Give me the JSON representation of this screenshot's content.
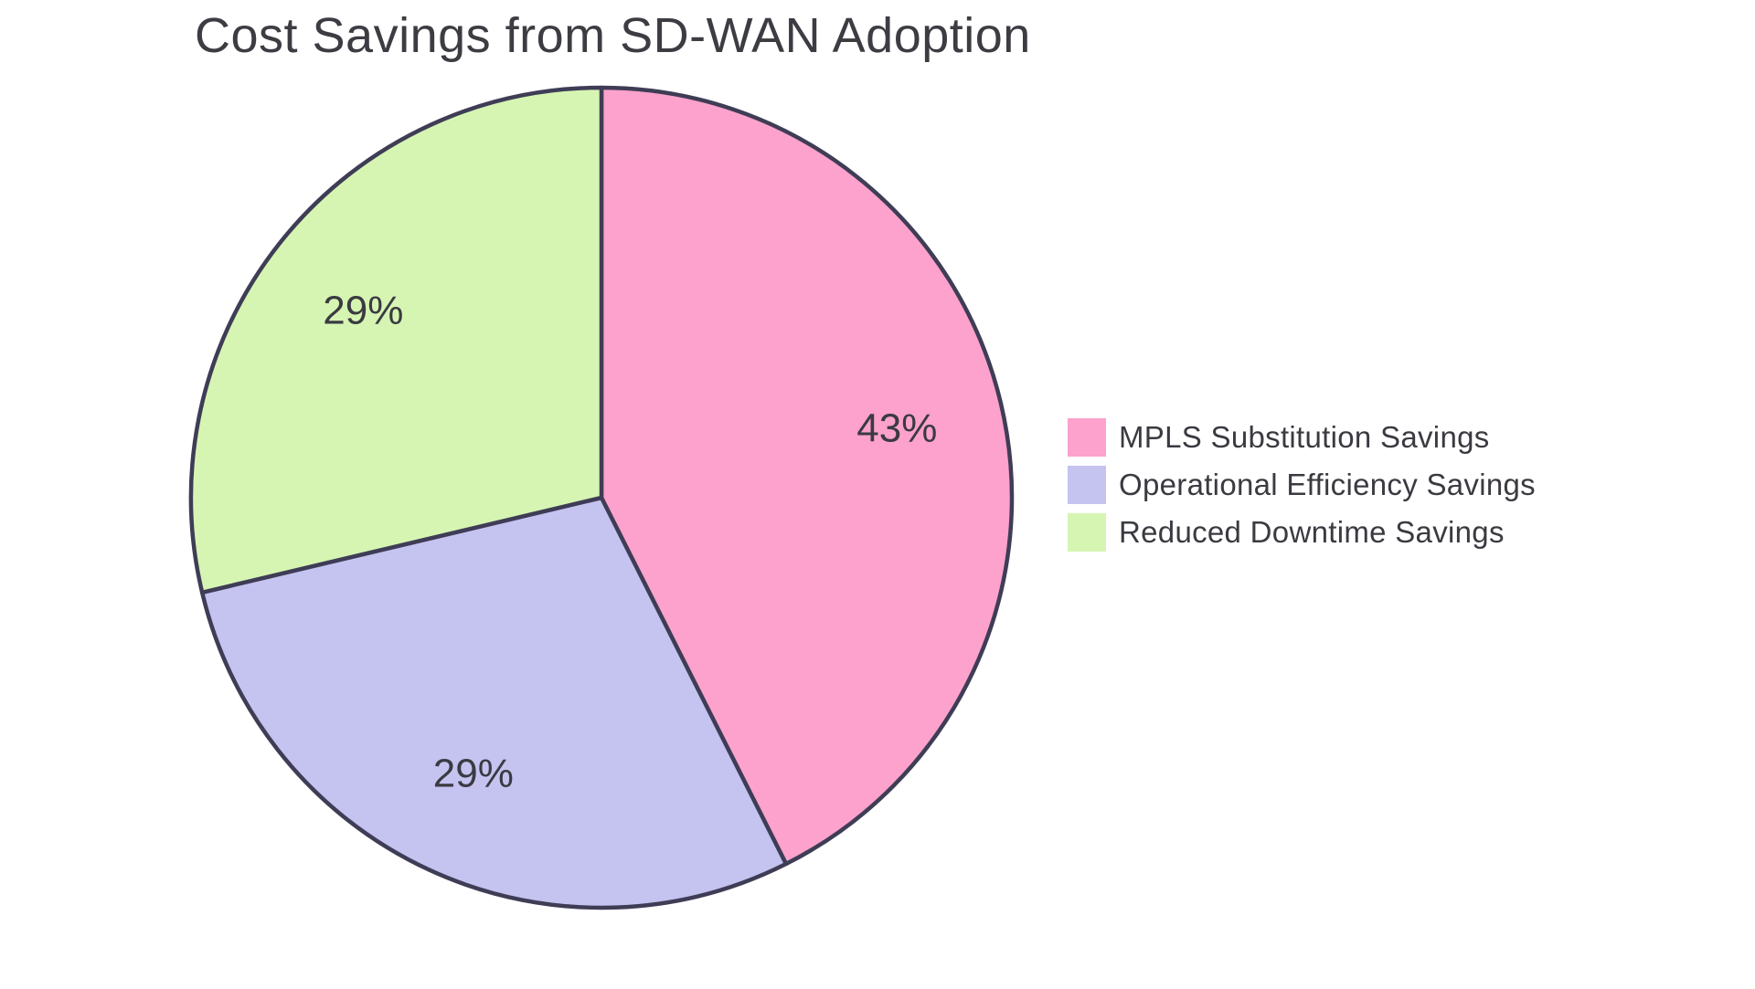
{
  "chart_data": {
    "type": "pie",
    "title": "Cost Savings from SD-WAN Adoption",
    "slices": [
      {
        "label": "MPLS Substitution Savings",
        "value": 43,
        "pct_label": "43%",
        "color": "#FCA2CC"
      },
      {
        "label": "Operational Efficiency Savings",
        "value": 29,
        "pct_label": "29%",
        "color": "#C5C3F0"
      },
      {
        "label": "Reduced Downtime Savings",
        "value": 29,
        "pct_label": "29%",
        "color": "#D6F5B3"
      }
    ],
    "start_angle": "12-o-clock",
    "direction": "clockwise",
    "stroke_color": "#3F3D56",
    "stroke_width": 4.5,
    "label_color": "#3B3A42",
    "label_radius_fraction": 0.74,
    "legend_position": "right",
    "background": "#FFFFFF",
    "grid": false
  }
}
